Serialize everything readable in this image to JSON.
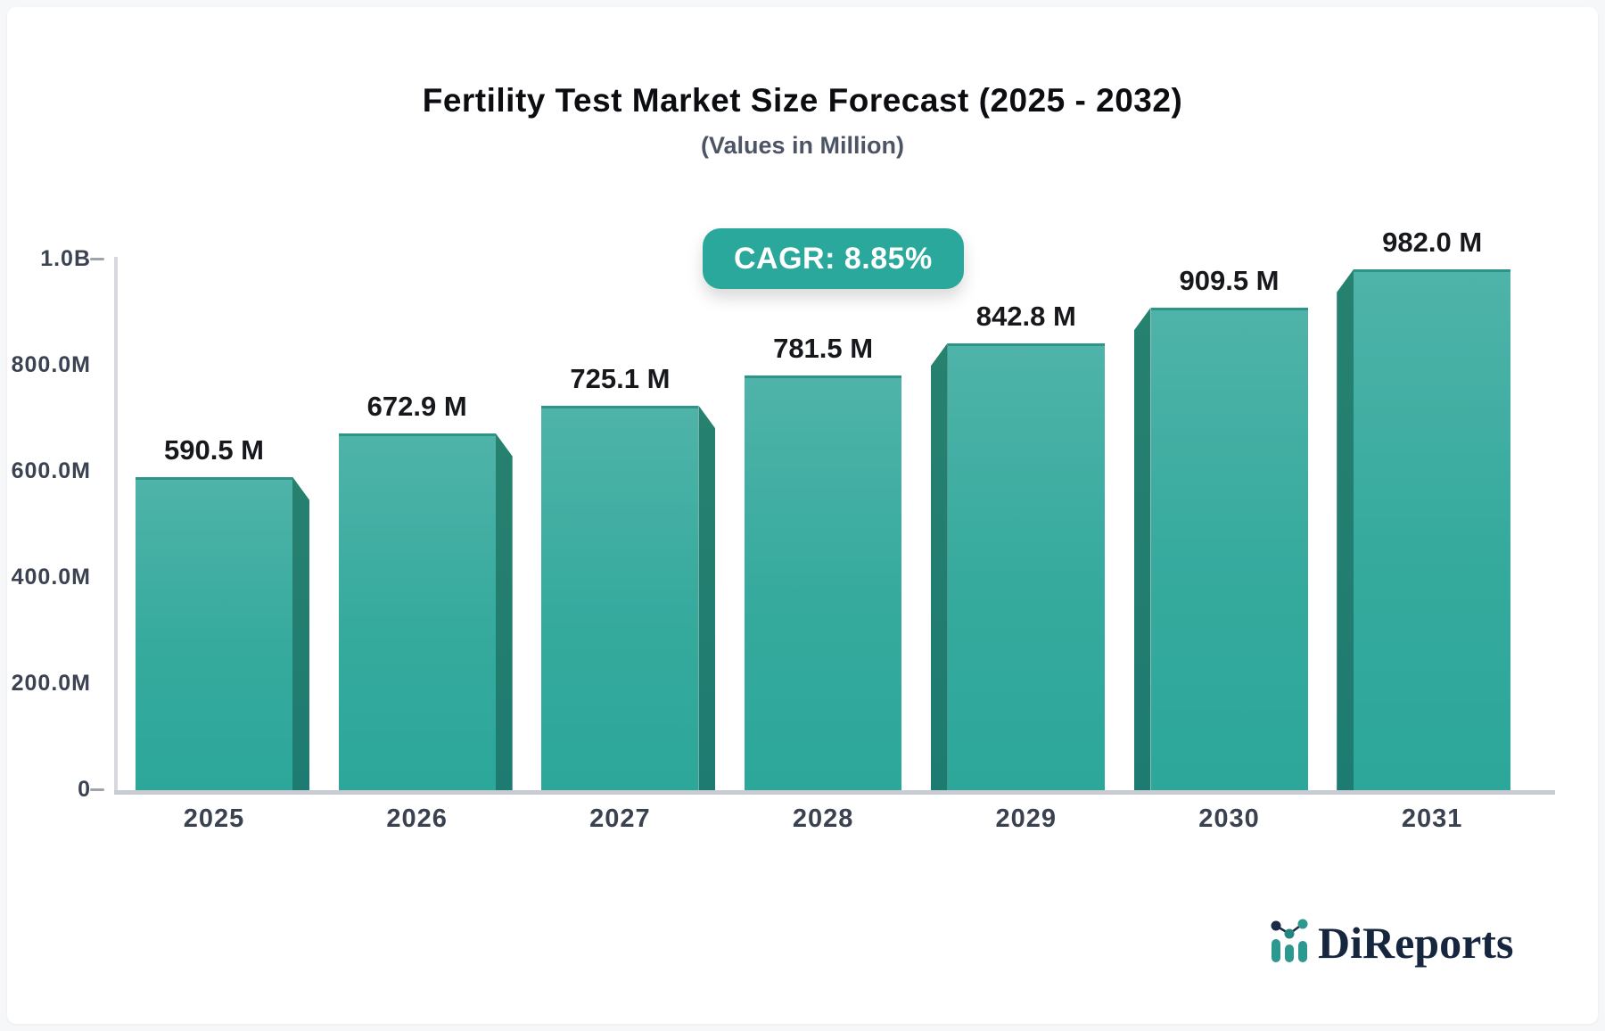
{
  "page": {
    "background": "#f6f7f9",
    "card_background": "#ffffff"
  },
  "header": {
    "title": "Fertility Test Market Size Forecast (2025 - 2032)",
    "subtitle": "(Values in Million)"
  },
  "badge": {
    "label": "CAGR: 8.85%",
    "background": "#2aa89b",
    "text_color": "#ffffff"
  },
  "chart_data": {
    "type": "bar",
    "title": "Fertility Test Market Size Forecast (2025 - 2032)",
    "subtitle": "(Values in Million)",
    "categories": [
      "2025",
      "2026",
      "2027",
      "2028",
      "2029",
      "2030",
      "2031"
    ],
    "values": [
      590.5,
      672.9,
      725.1,
      781.5,
      842.8,
      909.5,
      982.0
    ],
    "value_labels": [
      "590.5 M",
      "672.9 M",
      "725.1 M",
      "781.5 M",
      "842.8 M",
      "909.5 M",
      "982.0 M"
    ],
    "xlabel": "",
    "ylabel": "",
    "ylim": [
      0,
      1000
    ],
    "y_ticks": [
      {
        "label": "0",
        "value": 0,
        "dash": true
      },
      {
        "label": "200.0M",
        "value": 200,
        "dash": false
      },
      {
        "label": "400.0M",
        "value": 400,
        "dash": false
      },
      {
        "label": "600.0M",
        "value": 600,
        "dash": false
      },
      {
        "label": "800.0M",
        "value": 800,
        "dash": false
      },
      {
        "label": "1.0B",
        "value": 1000,
        "dash": true
      }
    ],
    "grid": false,
    "legend": "none",
    "colors": {
      "bar_top": "#4fb3a9",
      "bar_bottom": "#2ca79a",
      "bar_side": "#1e7b71",
      "axis_line": "#d7d9de",
      "label_text": "#3b4352",
      "value_text": "#17181c"
    }
  },
  "footer": {
    "logo_text": "DiReports"
  }
}
